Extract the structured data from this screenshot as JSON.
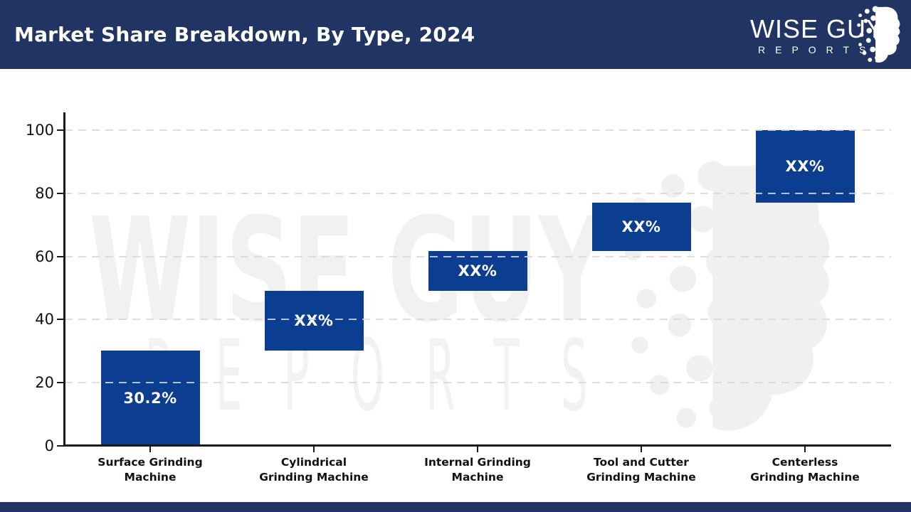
{
  "header": {
    "title": "Market Share Breakdown, By Type, 2024",
    "brand_line1": "WISE GUY",
    "brand_line2": "REPORTS"
  },
  "watermark": {
    "line1": "WISE GUY",
    "line2": "REPORTS"
  },
  "colors": {
    "header_bg": "#213564",
    "footer_bg": "#213564",
    "bar": "#0b3d91",
    "bar_label": "#ffffff",
    "grid": "#d8d8d8",
    "axis": "#1a1a1a",
    "watermark": "#f1f1f1"
  },
  "chart_data": {
    "type": "bar",
    "subtype": "waterfall",
    "title": "Market Share Breakdown, By Type, 2024",
    "xlabel": "",
    "ylabel": "",
    "ylim": [
      0,
      106
    ],
    "y_ticks": [
      0,
      20,
      40,
      60,
      80,
      100
    ],
    "grid": {
      "horizontal": true,
      "style": "dashed",
      "drawn_over_bars": true
    },
    "legend": "none",
    "bar_color": "#0b3d91",
    "categories": [
      "Surface Grinding Machine",
      "Cylindrical Grinding Machine",
      "Internal Grinding Machine",
      "Tool and Cutter Grinding Machine",
      "Centerless Grinding Machine"
    ],
    "category_lines": [
      [
        "Surface Grinding",
        "Machine"
      ],
      [
        "Cylindrical",
        "Grinding Machine"
      ],
      [
        "Internal Grinding",
        "Machine"
      ],
      [
        "Tool and Cutter",
        "Grinding Machine"
      ],
      [
        "Centerless",
        "Grinding Machine"
      ]
    ],
    "segments": [
      {
        "category": "Surface Grinding Machine",
        "start": 0,
        "end": 30.2,
        "value": 30.2,
        "label": "30.2%"
      },
      {
        "category": "Cylindrical Grinding Machine",
        "start": 30.2,
        "end": 49.0,
        "value": 18.8,
        "label": "XX%"
      },
      {
        "category": "Internal Grinding Machine",
        "start": 49.0,
        "end": 61.6,
        "value": 12.6,
        "label": "XX%"
      },
      {
        "category": "Tool and Cutter Grinding Machine",
        "start": 61.6,
        "end": 77.1,
        "value": 15.5,
        "label": "XX%"
      },
      {
        "category": "Centerless Grinding Machine",
        "start": 77.1,
        "end": 100.0,
        "value": 22.9,
        "label": "XX%"
      }
    ]
  }
}
